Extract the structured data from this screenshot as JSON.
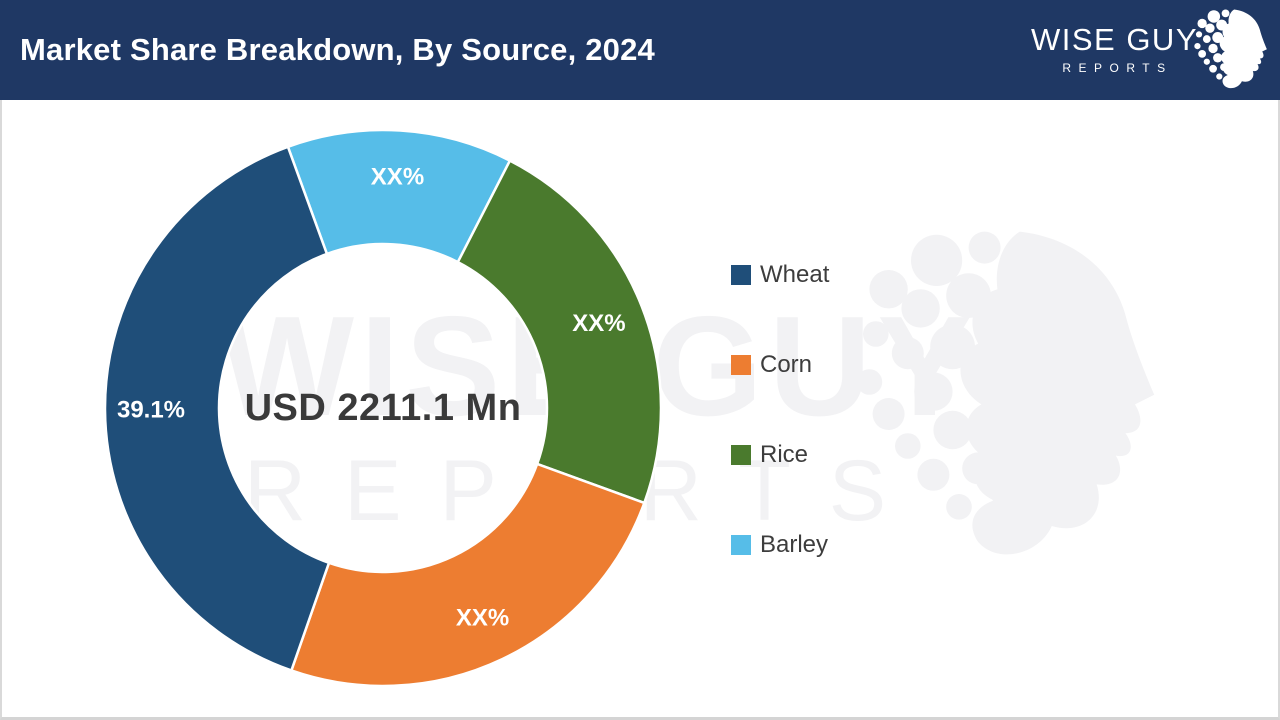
{
  "header": {
    "title": "Market Share Breakdown, By Source, 2024",
    "logo": {
      "line1": "WISE GUY",
      "line2": "REPORTS"
    }
  },
  "watermark": {
    "line1": "WISE GUY",
    "line2": "REPORTS"
  },
  "chart_data": {
    "type": "pie",
    "donut": true,
    "title": "Market Share Breakdown, By Source, 2024",
    "center_label": "USD 2211.1 Mn",
    "categories": [
      "Wheat",
      "Corn",
      "Rice",
      "Barley"
    ],
    "series": [
      {
        "name": "Wheat",
        "value_pct": 39.1,
        "slice_label": "39.1%",
        "color": "#1f4e79"
      },
      {
        "name": "Corn",
        "value_pct": 24.8,
        "slice_label": "XX%",
        "color": "#ed7d31"
      },
      {
        "name": "Rice",
        "value_pct": 23.0,
        "slice_label": "XX%",
        "color": "#4a7a2d"
      },
      {
        "name": "Barley",
        "value_pct": 13.1,
        "slice_label": "XX%",
        "color": "#56bde8"
      }
    ],
    "legend_position": "right",
    "start_angle_deg": -20,
    "draw_order": [
      "Barley",
      "Rice",
      "Corn",
      "Wheat"
    ],
    "gap_color": "#ffffff",
    "background": "#ffffff"
  }
}
